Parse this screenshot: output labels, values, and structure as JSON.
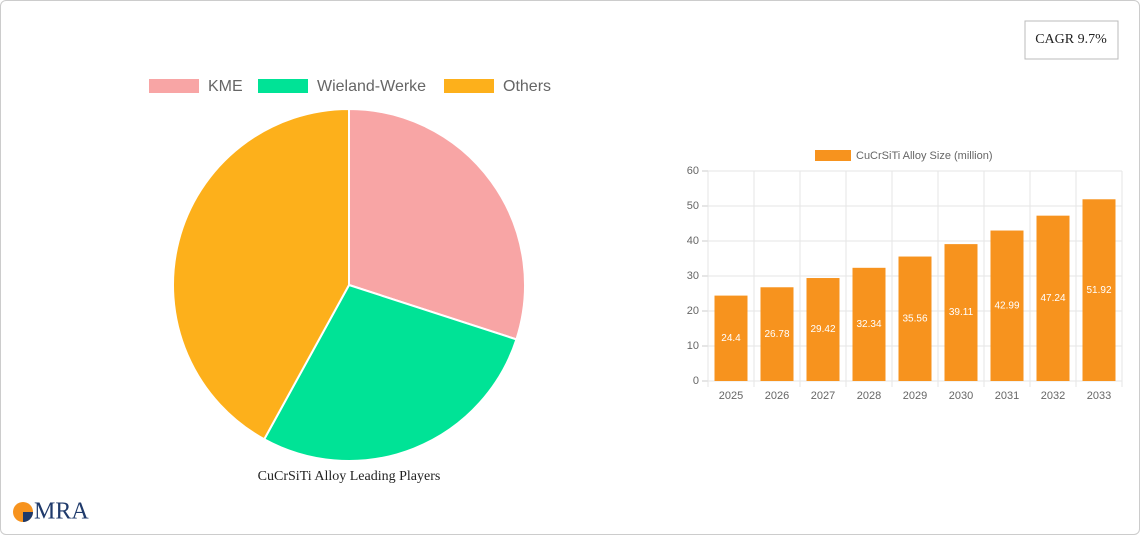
{
  "badge": "CAGR 9.7%",
  "logo": "MRA",
  "chart_data": [
    {
      "type": "pie",
      "title": "CuCrSiTi Alloy Leading Players",
      "categories": [
        "KME",
        "Wieland-Werke",
        "Others"
      ],
      "values": [
        30,
        28,
        42
      ],
      "colors": [
        "#f8a5a5",
        "#00e396",
        "#fdb01b"
      ]
    },
    {
      "type": "bar",
      "categories": [
        "2025",
        "2026",
        "2027",
        "2028",
        "2029",
        "2030",
        "2031",
        "2032",
        "2033"
      ],
      "series": [
        {
          "name": "CuCrSiTi Alloy Size (million)",
          "color": "#f7931e",
          "values": [
            24.4,
            26.78,
            29.42,
            32.34,
            35.56,
            39.11,
            42.99,
            47.24,
            51.92
          ]
        }
      ],
      "ylim": [
        0,
        60
      ],
      "yticks": [
        0,
        10,
        20,
        30,
        40,
        50,
        60
      ],
      "grid": true
    }
  ]
}
